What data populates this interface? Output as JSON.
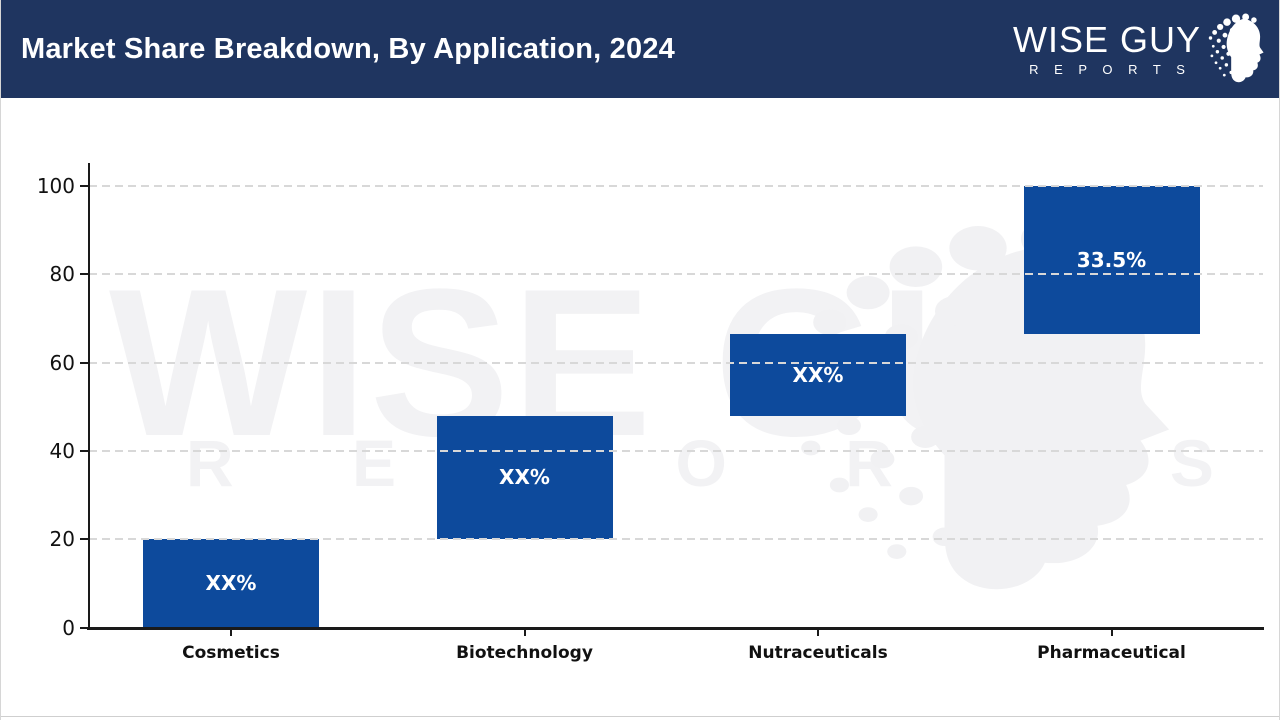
{
  "header": {
    "title": "Market Share Breakdown, By Application, 2024",
    "logo": {
      "line1": "WISE GUY",
      "line2": "R E P O R T S"
    }
  },
  "watermark": {
    "line1": "WISE GUY",
    "line2": "R E P O R T S"
  },
  "chart_data": {
    "type": "bar",
    "subtype": "waterfall",
    "title": "Market Share Breakdown, By Application, 2024",
    "categories": [
      "Cosmetics",
      "Biotechnology",
      "Nutraceuticals",
      "Pharmaceutical"
    ],
    "values": [
      20,
      28,
      18.5,
      33.5
    ],
    "cumulative_start": [
      0,
      20,
      48,
      66.5
    ],
    "cumulative_end": [
      20,
      48,
      66.5,
      100
    ],
    "bar_labels": [
      "XX%",
      "XX%",
      "XX%",
      "33.5%"
    ],
    "xlabel": "",
    "ylabel": "",
    "y_ticks": [
      0,
      20,
      40,
      60,
      80,
      100
    ],
    "ylim": [
      0,
      105
    ],
    "grid": "horizontal-dashed",
    "legend": "none",
    "units": "percent"
  },
  "colors": {
    "header_bg": "#1f3560",
    "bar": "#0d4a9c",
    "bar_label": "#ffffff",
    "grid": "#d8d8d8",
    "axis": "#1a1a1a",
    "watermark": "#f2f2f4"
  }
}
